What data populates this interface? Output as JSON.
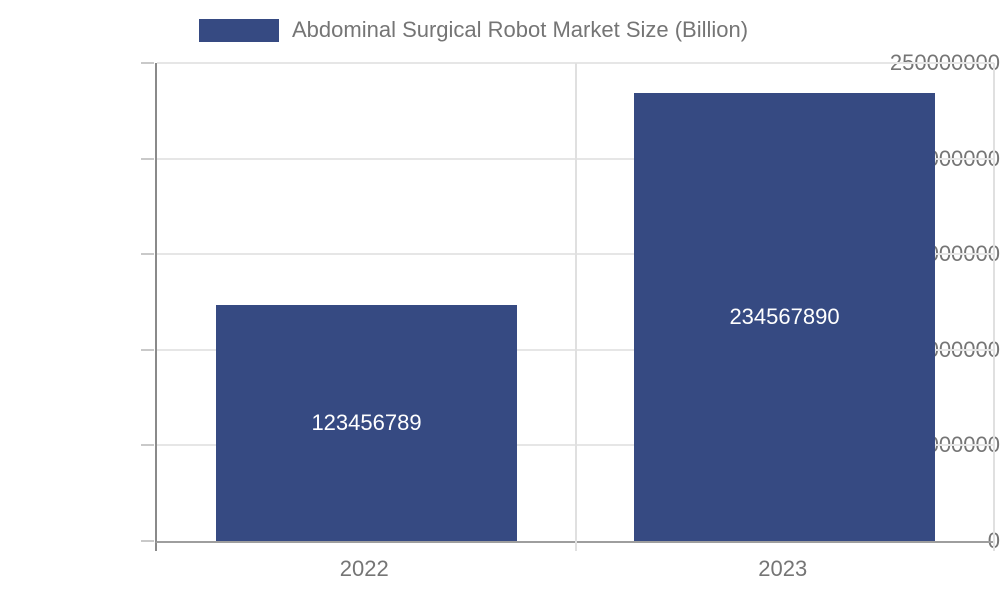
{
  "chart_data": {
    "type": "bar",
    "title": "Abdominal Surgical Robot Market Size (Billion)",
    "categories": [
      "2022",
      "2023"
    ],
    "series": [
      {
        "name": "Abdominal Surgical Robot Market Size (Billion)",
        "values": [
          123456789,
          234567890
        ],
        "value_labels": [
          "123456789",
          "234567890"
        ],
        "color": "#364a82"
      }
    ],
    "xlabel": "",
    "ylabel": "",
    "ylim": [
      0,
      250000000
    ],
    "yticks": [
      0,
      50000000,
      100000000,
      150000000,
      200000000,
      250000000
    ],
    "ytick_labels": [
      "0",
      "50000000",
      "100000000",
      "150000000",
      "200000000",
      "250000000"
    ],
    "grid": true,
    "legend_position": "top"
  },
  "colors": {
    "bar": "#364a82",
    "grid": "#e6e6e6",
    "vgrid": "#e0e0e0",
    "axis_y": "#8a8a8a",
    "axis_x": "#9e9e9e",
    "tick_text": "#757575",
    "bar_label_text": "#ffffff",
    "background": "#ffffff"
  }
}
